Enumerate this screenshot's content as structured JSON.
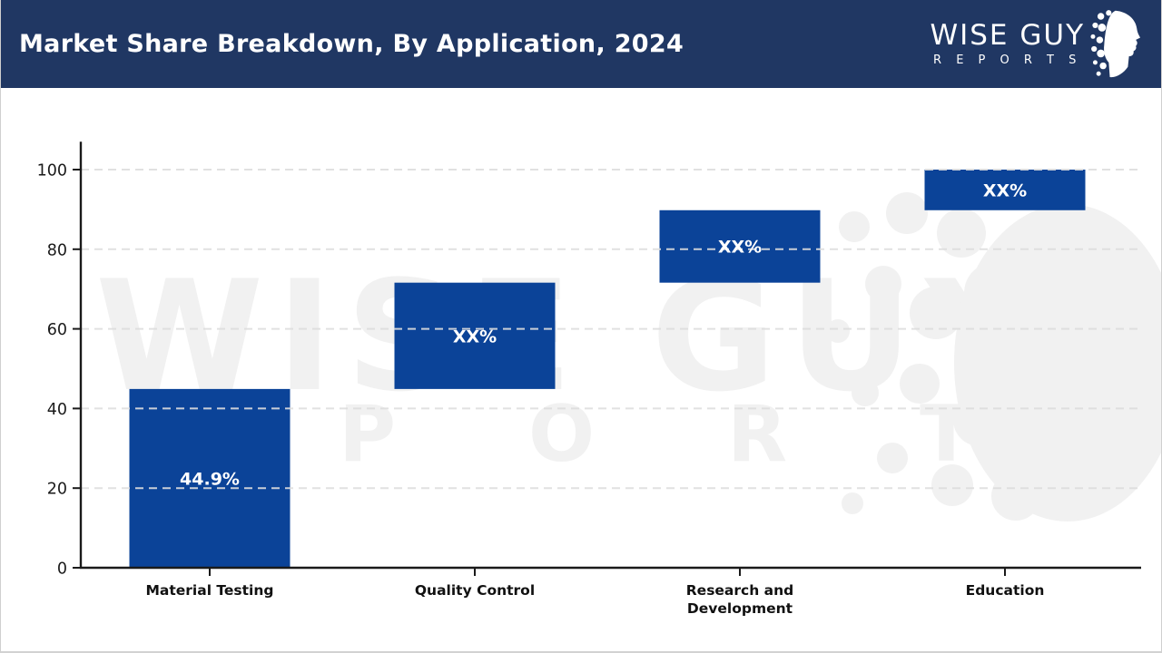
{
  "page": {
    "background": "#ffffff",
    "border_color": "#cfcfcf"
  },
  "header": {
    "title": "Market Share Breakdown, By Application, 2024",
    "background_color": "#203763",
    "logo": {
      "line1": "WISE GUY",
      "line2": "R E P O R T S",
      "head_icon": "dotted-face-profile"
    }
  },
  "watermark": {
    "line1": "WISE GUY",
    "line2": "P O R T S",
    "color": "#f1f1f1"
  },
  "chart_data": {
    "type": "bar",
    "subtype": "waterfall",
    "title": "Market Share Breakdown, By Application, 2024",
    "categories": [
      "Material Testing",
      "Quality Control",
      "Research and Development",
      "Education"
    ],
    "category_label_lines": [
      [
        "Material Testing"
      ],
      [
        "Quality Control"
      ],
      [
        "Research and",
        "Development"
      ],
      [
        "Education"
      ]
    ],
    "segments": [
      {
        "category": "Material Testing",
        "start": 0,
        "end": 44.9,
        "label": "44.9%"
      },
      {
        "category": "Quality Control",
        "start": 44.9,
        "end": 71.6,
        "label": "XX%"
      },
      {
        "category": "Research and Development",
        "start": 71.6,
        "end": 89.8,
        "label": "XX%"
      },
      {
        "category": "Education",
        "start": 89.8,
        "end": 100,
        "label": "XX%"
      }
    ],
    "yticks": [
      0,
      20,
      40,
      60,
      80,
      100
    ],
    "ylim": [
      0,
      107
    ],
    "xlabel": "",
    "ylabel": "",
    "legend": "none",
    "grid": "dashed-horizontal",
    "bar_color": "#0b4398",
    "bar_label_color": "#ffffff",
    "axis_color": "#1a1a1a",
    "tick_label_color": "#1a1a1a",
    "grid_color": "#dedede"
  }
}
